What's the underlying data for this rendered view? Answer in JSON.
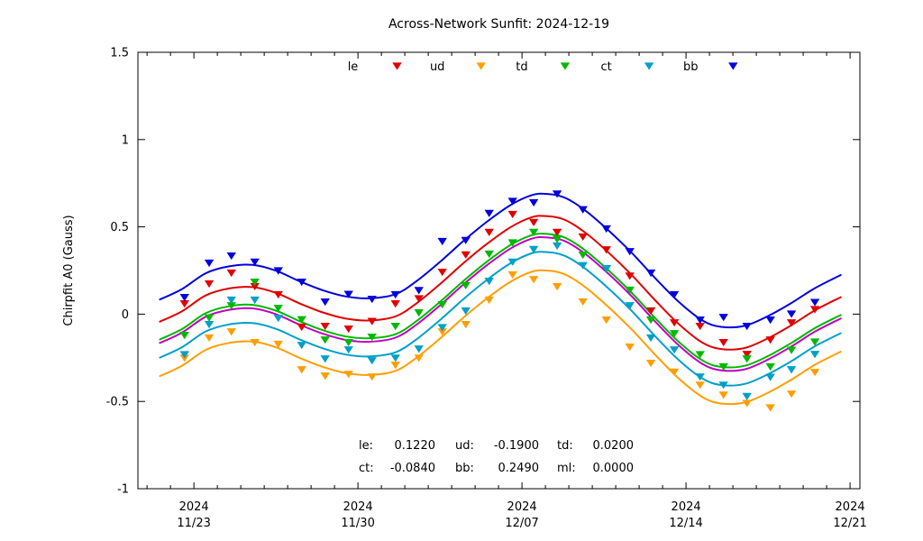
{
  "title": "Across-Network Sunfit: 2024-12-19",
  "chart_data": {
    "type": "line+scatter",
    "title": "Across-Network Sunfit: 2024-12-19",
    "xlabel": "",
    "ylabel": "Chirpfit A0 (Gauss)",
    "ylim": [
      -1,
      1.5
    ],
    "y_ticks": [
      {
        "v": 1.5,
        "label": "1.5"
      },
      {
        "v": 1,
        "label": "1"
      },
      {
        "v": 0.5,
        "label": "0.5"
      },
      {
        "v": 0,
        "label": "0"
      },
      {
        "v": -0.5,
        "label": "-0.5"
      },
      {
        "v": -1,
        "label": "-1"
      }
    ],
    "x_range_days": [
      -2.39,
      28.42
    ],
    "x_minor_step_days": 1,
    "x_ticks": [
      {
        "day": 0,
        "line1": "2024",
        "line2": "11/23"
      },
      {
        "day": 7,
        "line1": "2024",
        "line2": "11/30"
      },
      {
        "day": 14,
        "line1": "2024",
        "line2": "12/07"
      },
      {
        "day": 21,
        "line1": "2024",
        "line2": "12/14"
      },
      {
        "day": 28,
        "line1": "2024",
        "line2": "12/21"
      }
    ],
    "grid": false,
    "legend_position": "top-inside",
    "legend": [
      {
        "name": "le",
        "color": "#e10000"
      },
      {
        "name": "ud",
        "color": "#ff9e00"
      },
      {
        "name": "td",
        "color": "#00b800"
      },
      {
        "name": "ct",
        "color": "#00a0c8"
      },
      {
        "name": "bb",
        "color": "#0000dd"
      }
    ],
    "base_curve_ml": [
      [
        -1.45,
        -0.165
      ],
      [
        -0.5,
        -0.105
      ],
      [
        0.5,
        -0.015
      ],
      [
        1.5,
        0.025
      ],
      [
        2.5,
        0.033
      ],
      [
        3.5,
        0.0
      ],
      [
        4.5,
        -0.06
      ],
      [
        5.5,
        -0.112
      ],
      [
        6.5,
        -0.148
      ],
      [
        7.5,
        -0.158
      ],
      [
        8.6,
        -0.135
      ],
      [
        9.5,
        -0.06
      ],
      [
        10.5,
        0.05
      ],
      [
        11.5,
        0.17
      ],
      [
        12.5,
        0.28
      ],
      [
        13.5,
        0.375
      ],
      [
        14.4,
        0.432
      ],
      [
        15.0,
        0.44
      ],
      [
        15.8,
        0.42
      ],
      [
        16.7,
        0.345
      ],
      [
        17.7,
        0.23
      ],
      [
        18.7,
        0.1
      ],
      [
        19.7,
        -0.045
      ],
      [
        20.7,
        -0.18
      ],
      [
        21.7,
        -0.285
      ],
      [
        22.5,
        -0.322
      ],
      [
        23.5,
        -0.316
      ],
      [
        24.5,
        -0.26
      ],
      [
        25.5,
        -0.185
      ],
      [
        26.5,
        -0.1
      ],
      [
        27.6,
        -0.025
      ]
    ],
    "series": [
      {
        "name": "le",
        "color": "#e10000",
        "offset": 0.122,
        "scatter": [
          [
            -0.4,
            0.061
          ],
          [
            0.65,
            0.175
          ],
          [
            1.6,
            0.237
          ],
          [
            2.6,
            0.16
          ],
          [
            3.6,
            0.113
          ],
          [
            4.6,
            -0.073
          ],
          [
            5.6,
            -0.068
          ],
          [
            6.6,
            -0.084
          ],
          [
            7.6,
            -0.04
          ],
          [
            8.6,
            0.061
          ],
          [
            9.6,
            0.09
          ],
          [
            10.6,
            0.242
          ],
          [
            11.6,
            0.341
          ],
          [
            12.6,
            0.47
          ],
          [
            13.6,
            0.573
          ],
          [
            14.5,
            0.527
          ],
          [
            15.5,
            0.47
          ],
          [
            16.6,
            0.444
          ],
          [
            17.6,
            0.37
          ],
          [
            18.6,
            0.22
          ],
          [
            19.5,
            0.02
          ],
          [
            20.5,
            -0.048
          ],
          [
            21.6,
            -0.068
          ],
          [
            22.6,
            -0.161
          ],
          [
            23.6,
            -0.229
          ],
          [
            24.6,
            -0.146
          ],
          [
            25.5,
            -0.048
          ],
          [
            26.5,
            0.028
          ]
        ]
      },
      {
        "name": "ud",
        "color": "#ff9e00",
        "offset": -0.19,
        "scatter": [
          [
            -0.4,
            -0.25
          ],
          [
            0.65,
            -0.135
          ],
          [
            1.6,
            -0.1
          ],
          [
            2.6,
            -0.161
          ],
          [
            3.6,
            -0.171
          ],
          [
            4.6,
            -0.317
          ],
          [
            5.6,
            -0.353
          ],
          [
            6.6,
            -0.343
          ],
          [
            7.6,
            -0.358
          ],
          [
            8.6,
            -0.291
          ],
          [
            9.6,
            -0.25
          ],
          [
            10.6,
            -0.1
          ],
          [
            11.6,
            -0.058
          ],
          [
            12.6,
            0.082
          ],
          [
            13.6,
            0.227
          ],
          [
            14.5,
            0.2
          ],
          [
            15.5,
            0.159
          ],
          [
            16.6,
            0.072
          ],
          [
            17.6,
            -0.032
          ],
          [
            18.6,
            -0.187
          ],
          [
            19.5,
            -0.28
          ],
          [
            20.5,
            -0.33
          ],
          [
            21.6,
            -0.405
          ],
          [
            22.6,
            -0.462
          ],
          [
            23.6,
            -0.51
          ],
          [
            24.6,
            -0.535
          ],
          [
            25.5,
            -0.456
          ],
          [
            26.5,
            -0.332
          ]
        ]
      },
      {
        "name": "td",
        "color": "#00b800",
        "offset": 0.02,
        "scatter": [
          [
            -0.4,
            -0.12
          ],
          [
            0.65,
            -0.02
          ],
          [
            1.6,
            0.05
          ],
          [
            2.6,
            0.185
          ],
          [
            3.6,
            0.035
          ],
          [
            4.6,
            -0.03
          ],
          [
            5.6,
            -0.146
          ],
          [
            6.6,
            -0.161
          ],
          [
            7.6,
            -0.13
          ],
          [
            8.6,
            -0.068
          ],
          [
            9.6,
            0.009
          ],
          [
            10.6,
            0.056
          ],
          [
            11.6,
            0.165
          ],
          [
            12.6,
            0.346
          ],
          [
            13.6,
            0.41
          ],
          [
            14.5,
            0.47
          ],
          [
            15.5,
            0.43
          ],
          [
            16.6,
            0.34
          ],
          [
            17.6,
            0.26
          ],
          [
            18.6,
            0.139
          ],
          [
            19.5,
            -0.032
          ],
          [
            20.5,
            -0.11
          ],
          [
            21.6,
            -0.23
          ],
          [
            22.6,
            -0.3
          ],
          [
            23.6,
            -0.255
          ],
          [
            24.6,
            -0.3
          ],
          [
            25.5,
            -0.205
          ],
          [
            26.5,
            -0.158
          ]
        ]
      },
      {
        "name": "ct",
        "color": "#00a0c8",
        "offset": -0.084,
        "scatter": [
          [
            -0.4,
            -0.23
          ],
          [
            0.65,
            -0.058
          ],
          [
            1.6,
            0.082
          ],
          [
            2.6,
            0.082
          ],
          [
            3.6,
            -0.022
          ],
          [
            4.6,
            -0.177
          ],
          [
            5.6,
            -0.255
          ],
          [
            6.6,
            -0.203
          ],
          [
            7.6,
            -0.265
          ],
          [
            8.6,
            -0.25
          ],
          [
            9.6,
            -0.198
          ],
          [
            10.6,
            -0.075
          ],
          [
            11.6,
            0.02
          ],
          [
            12.6,
            0.19
          ],
          [
            13.6,
            0.3
          ],
          [
            14.5,
            0.372
          ],
          [
            15.5,
            0.392
          ],
          [
            16.6,
            0.28
          ],
          [
            17.6,
            0.263
          ],
          [
            18.6,
            0.05
          ],
          [
            19.5,
            -0.135
          ],
          [
            20.5,
            -0.203
          ],
          [
            21.6,
            -0.358
          ],
          [
            22.6,
            -0.405
          ],
          [
            23.6,
            -0.47
          ],
          [
            24.6,
            -0.36
          ],
          [
            25.5,
            -0.317
          ],
          [
            26.5,
            -0.229
          ]
        ]
      },
      {
        "name": "bb",
        "color": "#0000dd",
        "offset": 0.249,
        "scatter": [
          [
            -0.4,
            0.097
          ],
          [
            0.65,
            0.294
          ],
          [
            1.6,
            0.335
          ],
          [
            2.6,
            0.3
          ],
          [
            3.6,
            0.25
          ],
          [
            4.6,
            0.185
          ],
          [
            5.6,
            0.071
          ],
          [
            6.6,
            0.115
          ],
          [
            7.6,
            0.087
          ],
          [
            8.6,
            0.113
          ],
          [
            9.6,
            0.137
          ],
          [
            10.6,
            0.418
          ],
          [
            11.6,
            0.424
          ],
          [
            12.6,
            0.579
          ],
          [
            13.6,
            0.648
          ],
          [
            14.5,
            0.64
          ],
          [
            15.5,
            0.69
          ],
          [
            16.6,
            0.6
          ],
          [
            17.6,
            0.49
          ],
          [
            18.6,
            0.36
          ],
          [
            19.5,
            0.237
          ],
          [
            20.5,
            0.113
          ],
          [
            21.6,
            -0.032
          ],
          [
            22.6,
            -0.017
          ],
          [
            23.6,
            -0.068
          ],
          [
            24.6,
            -0.032
          ],
          [
            25.5,
            0.002
          ],
          [
            26.5,
            0.069
          ]
        ]
      },
      {
        "name": "ml",
        "color": "#bf00bf",
        "offset": 0.0,
        "scatter": []
      }
    ],
    "curve_draw_order": [
      "ud",
      "ct",
      "ml",
      "td",
      "le",
      "bb"
    ],
    "annotations": [
      {
        "pairs": [
          {
            "label": "le:",
            "value": "0.1220"
          },
          {
            "label": "ud:",
            "value": "-0.1900"
          },
          {
            "label": "td:",
            "value": "0.0200"
          }
        ]
      },
      {
        "pairs": [
          {
            "label": "ct:",
            "value": "-0.0840"
          },
          {
            "label": "bb:",
            "value": "0.2490"
          },
          {
            "label": "ml:",
            "value": "0.0000"
          }
        ]
      }
    ]
  }
}
